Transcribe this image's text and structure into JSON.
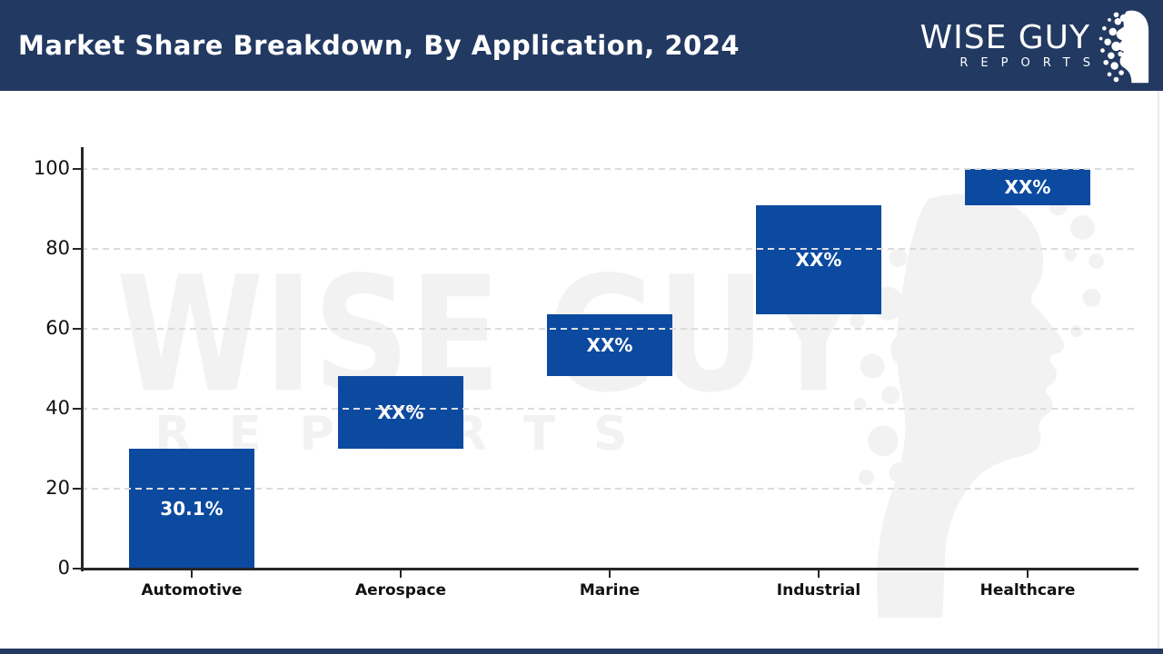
{
  "header": {
    "title": "Market Share Breakdown, By Application, 2024",
    "logo": {
      "line1": "WISE GUY",
      "line2": "REPORTS"
    }
  },
  "watermark": {
    "line1": "WISE GUY",
    "line2": "REPORTS"
  },
  "colors": {
    "header_bg": "#223962",
    "footer_bg": "#223962",
    "bar": "#0c4aa0",
    "bar_label": "#ffffff",
    "grid": "#dcdcdc",
    "axis": "#262626",
    "watermark": "#f2f2f2"
  },
  "chart_data": {
    "type": "bar",
    "subtype": "floating-waterfall",
    "title": "Market Share Breakdown, By Application, 2024",
    "categories": [
      "Automotive",
      "Aerospace",
      "Marine",
      "Industrial",
      "Healthcare"
    ],
    "bars": [
      {
        "category": "Automotive",
        "start": 0,
        "end": 30.1,
        "label": "30.1%"
      },
      {
        "category": "Aerospace",
        "start": 30.1,
        "end": 48.1,
        "label": "XX%"
      },
      {
        "category": "Marine",
        "start": 48.1,
        "end": 63.6,
        "label": "XX%"
      },
      {
        "category": "Industrial",
        "start": 63.6,
        "end": 90.9,
        "label": "XX%"
      },
      {
        "category": "Healthcare",
        "start": 90.9,
        "end": 100,
        "label": "XX%"
      }
    ],
    "values": [
      30.1,
      18.0,
      15.5,
      27.3,
      9.1
    ],
    "xlabel": "",
    "ylabel": "",
    "ylim": [
      0,
      105
    ],
    "yticks": [
      0,
      20,
      40,
      60,
      80,
      100
    ],
    "grid": "horizontal-dashed",
    "legend": "none"
  }
}
